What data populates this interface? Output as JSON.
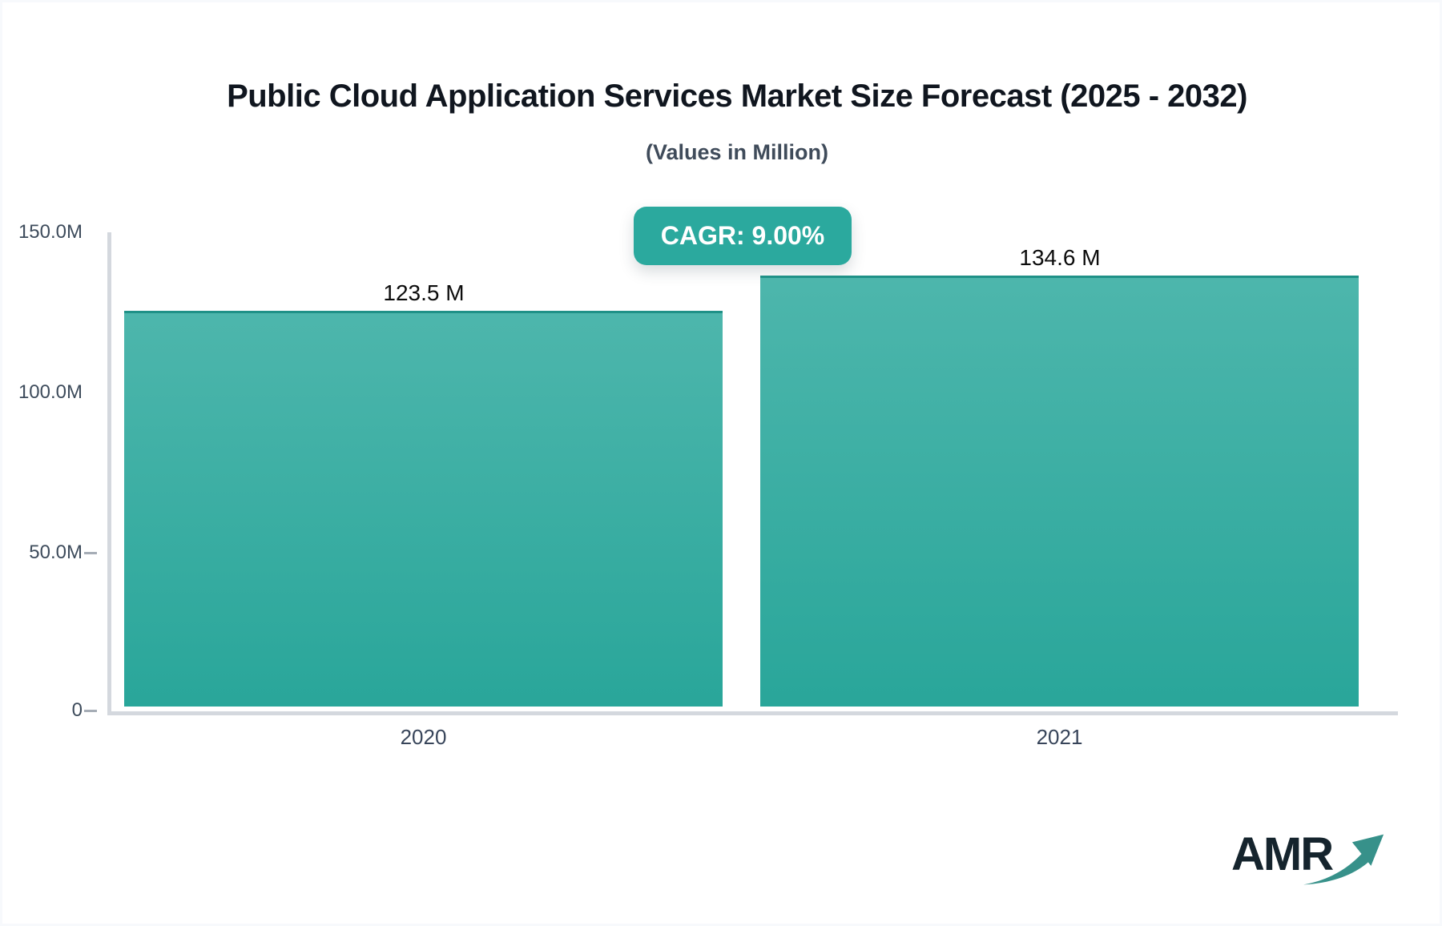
{
  "header": {
    "title": "Public Cloud Application Services Market Size Forecast (2025 - 2032)",
    "subtitle": "(Values in Million)"
  },
  "badge": {
    "label": "CAGR: 9.00%",
    "background": "#2ba99e",
    "text_color": "#ffffff"
  },
  "chart_data": {
    "type": "bar",
    "title": "Public Cloud Application Services Market Size Forecast (2025 - 2032)",
    "subtitle": "(Values in Million)",
    "categories": [
      "2020",
      "2021"
    ],
    "values": [
      123.5,
      134.6
    ],
    "value_labels": [
      "123.5 M",
      "134.6 M"
    ],
    "unit": "Million",
    "cagr": "9.00%",
    "xlabel": "",
    "ylabel": "",
    "ylim": [
      0,
      150
    ],
    "yticks": [
      "150.0M",
      "100.0M",
      "50.0M",
      "0"
    ],
    "grid": false,
    "legend": false,
    "bar_color_top": "#4db6ac",
    "bar_color_bottom": "#29a69a",
    "bar_border_color": "#1f9187",
    "axis_color": "#d4d8de",
    "tick_label_color": "#3e4c5c"
  },
  "logo": {
    "text": "AMR",
    "text_color": "#15242d",
    "arrow_color": "#37918a"
  }
}
